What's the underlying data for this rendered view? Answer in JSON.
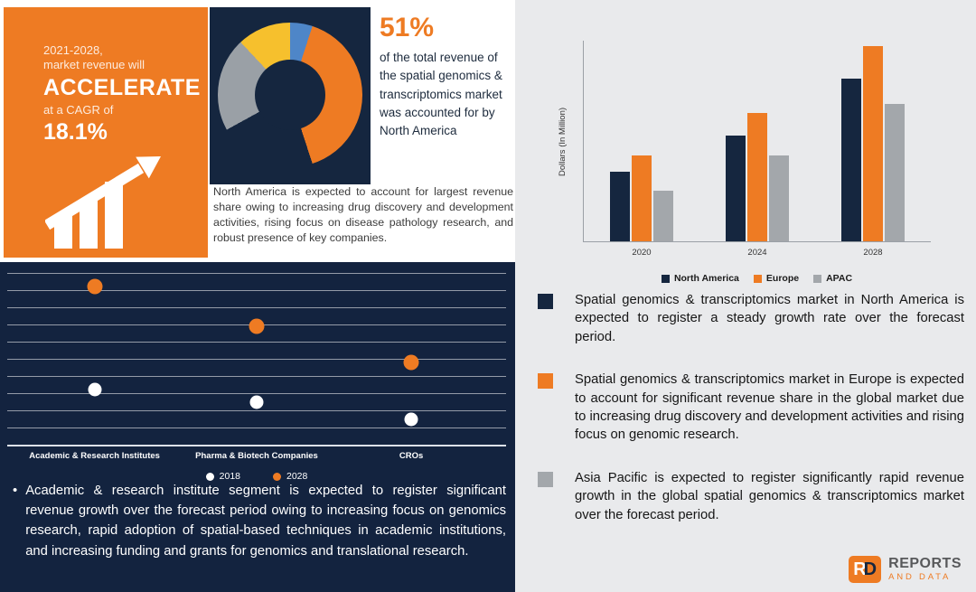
{
  "colors": {
    "orange": "#ee7b23",
    "navy": "#15263f",
    "panel_navy": "#13233f",
    "gray": "#a3a7ab",
    "yellow": "#f6c02d",
    "blue": "#4e86c8",
    "right_bg": "#e9eaec"
  },
  "promo": [
    "2021-2028,",
    "market revenue will",
    "ACCELERATE",
    "at a CAGR of",
    "18.1%"
  ],
  "stat": {
    "value": "51%",
    "desc": "of the total revenue of the spatial genomics & transcriptomics market was accounted for by North America"
  },
  "na_paragraph": "North America is expected to account for largest revenue share owing to increasing drug discovery and development activities, rising focus on disease pathology research, and robust presence of key companies.",
  "left_bullet": "Academic & research institute segment is expected to register significant revenue growth over the forecast period owing to increasing focus on genomics research, rapid adoption of spatial-based techniques in academic institutions, and increasing funding and grants for genomics and translational research.",
  "right_bullets": [
    {
      "color": "#15263f",
      "text": "Spatial genomics & transcriptomics market in North America is expected to register a steady growth rate over the forecast period."
    },
    {
      "color": "#ee7b23",
      "text": "Spatial genomics & transcriptomics market in Europe is expected to account for significant revenue share in the global market due to increasing drug discovery and development activities and rising focus on genomic research."
    },
    {
      "color": "#a3a7ab",
      "text": "Asia Pacific is expected to register significantly rapid revenue growth in the global spatial genomics & transcriptomics market over the forecast period."
    }
  ],
  "logo": {
    "mark_r": "R",
    "mark_d": "D",
    "line1": "REPORTS",
    "line2": "AND DATA"
  },
  "chart_data": [
    {
      "type": "pie",
      "style": "donut",
      "center_stat": "51%",
      "slices": [
        {
          "value": 5,
          "color": "#4e86c8"
        },
        {
          "value": 40,
          "color": "#ee7b23"
        },
        {
          "value": 22,
          "color": "#15263f"
        },
        {
          "value": 21,
          "color": "#9aa0a6"
        },
        {
          "value": 12,
          "color": "#f6c02d"
        }
      ]
    },
    {
      "type": "scatter",
      "categories": [
        "Academic & Research Institutes",
        "Pharma & Biotech Companies",
        "CROs"
      ],
      "series": [
        {
          "name": "2018",
          "color": "#ffffff",
          "values": [
            3.2,
            2.5,
            1.5
          ]
        },
        {
          "name": "2028",
          "color": "#ee7b23",
          "values": [
            9.2,
            6.9,
            4.8
          ]
        }
      ],
      "ylim": [
        0,
        10
      ],
      "grid": true,
      "legend_position": "bottom"
    },
    {
      "type": "bar",
      "categories": [
        "2020",
        "2024",
        "2028"
      ],
      "series": [
        {
          "name": "North America",
          "color": "#15263f",
          "values": [
            85,
            130,
            200
          ]
        },
        {
          "name": "Europe",
          "color": "#ee7b23",
          "values": [
            105,
            157,
            240
          ]
        },
        {
          "name": "APAC",
          "color": "#a3a7ab",
          "values": [
            62,
            105,
            168
          ]
        }
      ],
      "ylabel": "Dollars (In Million)",
      "ylim": [
        0,
        245
      ],
      "legend_position": "bottom"
    }
  ]
}
